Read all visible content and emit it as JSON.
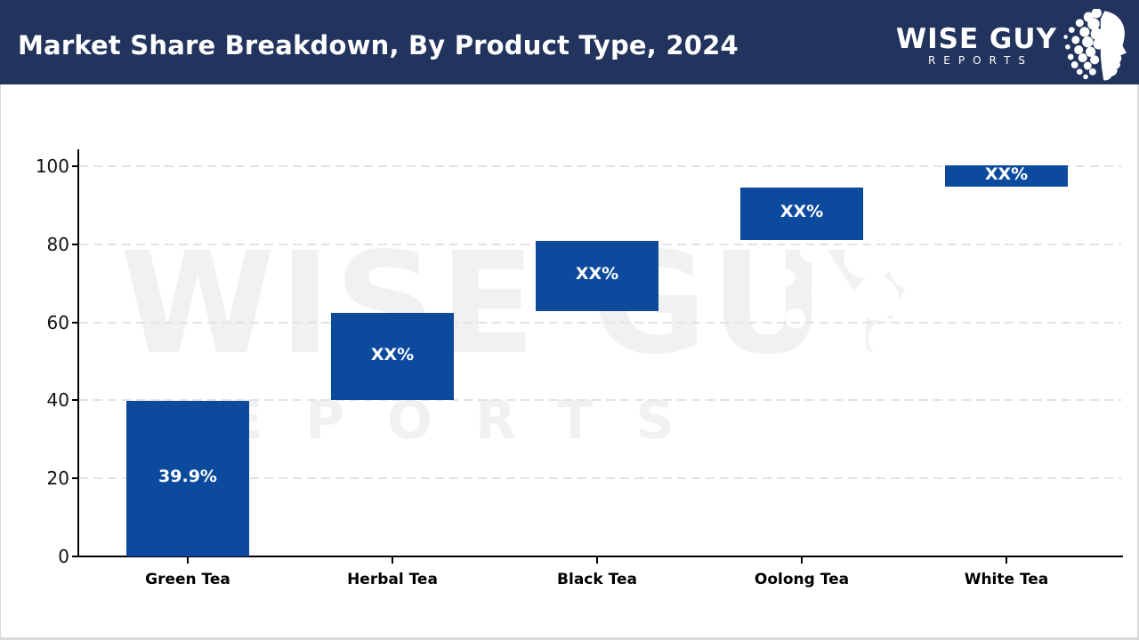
{
  "header": {
    "title": "Market Share Breakdown, By Product Type, 2024",
    "logo_line1": "WISE GUY",
    "logo_line2": "REPORTS",
    "bg_color": "#22345e"
  },
  "watermark": {
    "line1": "WISE GUY",
    "line2": "REPORTS"
  },
  "chart_data": {
    "type": "bar",
    "variant": "waterfall",
    "title": "Market Share Breakdown, By Product Type, 2024",
    "categories": [
      "Green Tea",
      "Herbal Tea",
      "Black Tea",
      "Oolong Tea",
      "White Tea"
    ],
    "segments": [
      {
        "category": "Green Tea",
        "start": 0,
        "end": 39.9,
        "label": "39.9%"
      },
      {
        "category": "Herbal Tea",
        "start": 40.2,
        "end": 62.4,
        "label": "XX%"
      },
      {
        "category": "Black Tea",
        "start": 62.9,
        "end": 80.9,
        "label": "XX%"
      },
      {
        "category": "Oolong Tea",
        "start": 81.2,
        "end": 94.6,
        "label": "XX%"
      },
      {
        "category": "White Tea",
        "start": 94.7,
        "end": 100.2,
        "label": "XX%"
      }
    ],
    "yticks": [
      0,
      20,
      40,
      60,
      80,
      100
    ],
    "ylim": [
      0,
      100
    ],
    "grid": "horizontal-dashed",
    "bar_color": "#0c4a9e",
    "bar_label_color": "#ffffff",
    "axis_color": "#000000",
    "xlabel": "",
    "ylabel": ""
  }
}
